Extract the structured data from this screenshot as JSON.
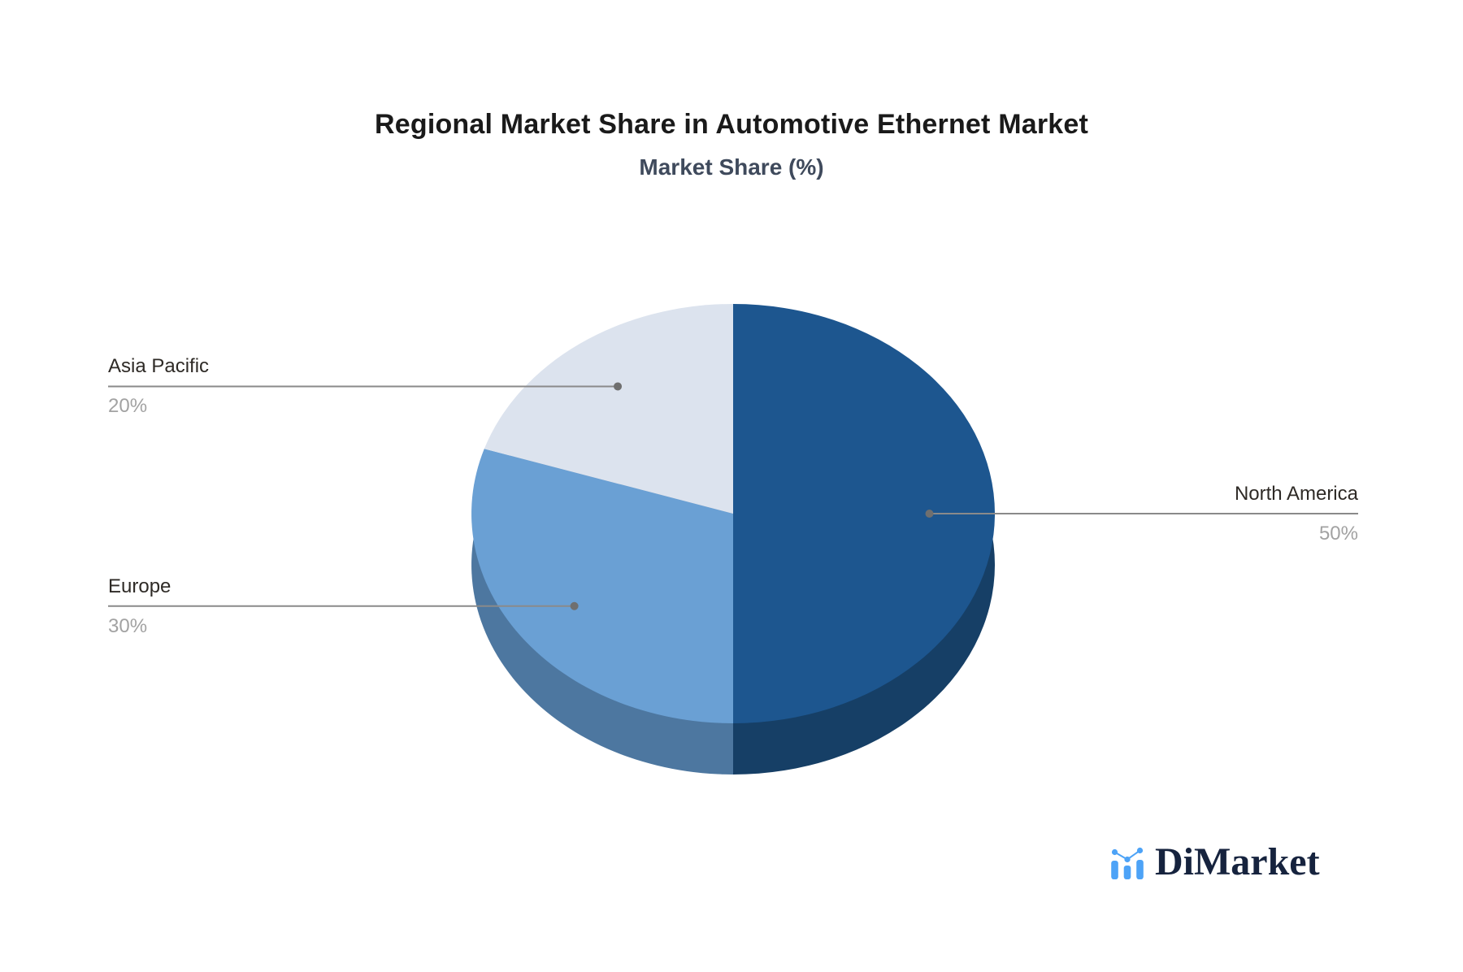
{
  "title": "Regional Market Share in Automotive Ethernet Market",
  "subtitle": "Market Share (%)",
  "chart_data": {
    "type": "pie",
    "title": "Regional Market Share in Automotive Ethernet Market",
    "subtitle": "Market Share (%)",
    "unit": "%",
    "effect": "3d-extruded",
    "start_angle": "top",
    "direction": "clockwise",
    "legend": "none",
    "labels": "outside-with-leader-lines",
    "slices": [
      {
        "label": "North America",
        "value": 50,
        "display_value": "50%",
        "color": "#1d568f",
        "side_color": "#163f66"
      },
      {
        "label": "Europe",
        "value": 30,
        "display_value": "30%",
        "color": "#6aa0d4",
        "side_color": "#4d77a0"
      },
      {
        "label": "Asia Pacific",
        "value": 20,
        "display_value": "20%",
        "color": "#dce3ee",
        "side_color": "#a9b2c1"
      }
    ]
  },
  "callout_style": {
    "line_color": "#8a8a8a",
    "dot_color": "#6f6f6f",
    "name_color": "#2e2a26",
    "value_color": "#a2a2a2"
  },
  "branding": {
    "name": "DiMarket",
    "icon": "bar-chart-logo-icon",
    "text_color": "#16233e",
    "icon_color": "#4da3f7"
  },
  "page": {
    "background": "#ffffff"
  }
}
